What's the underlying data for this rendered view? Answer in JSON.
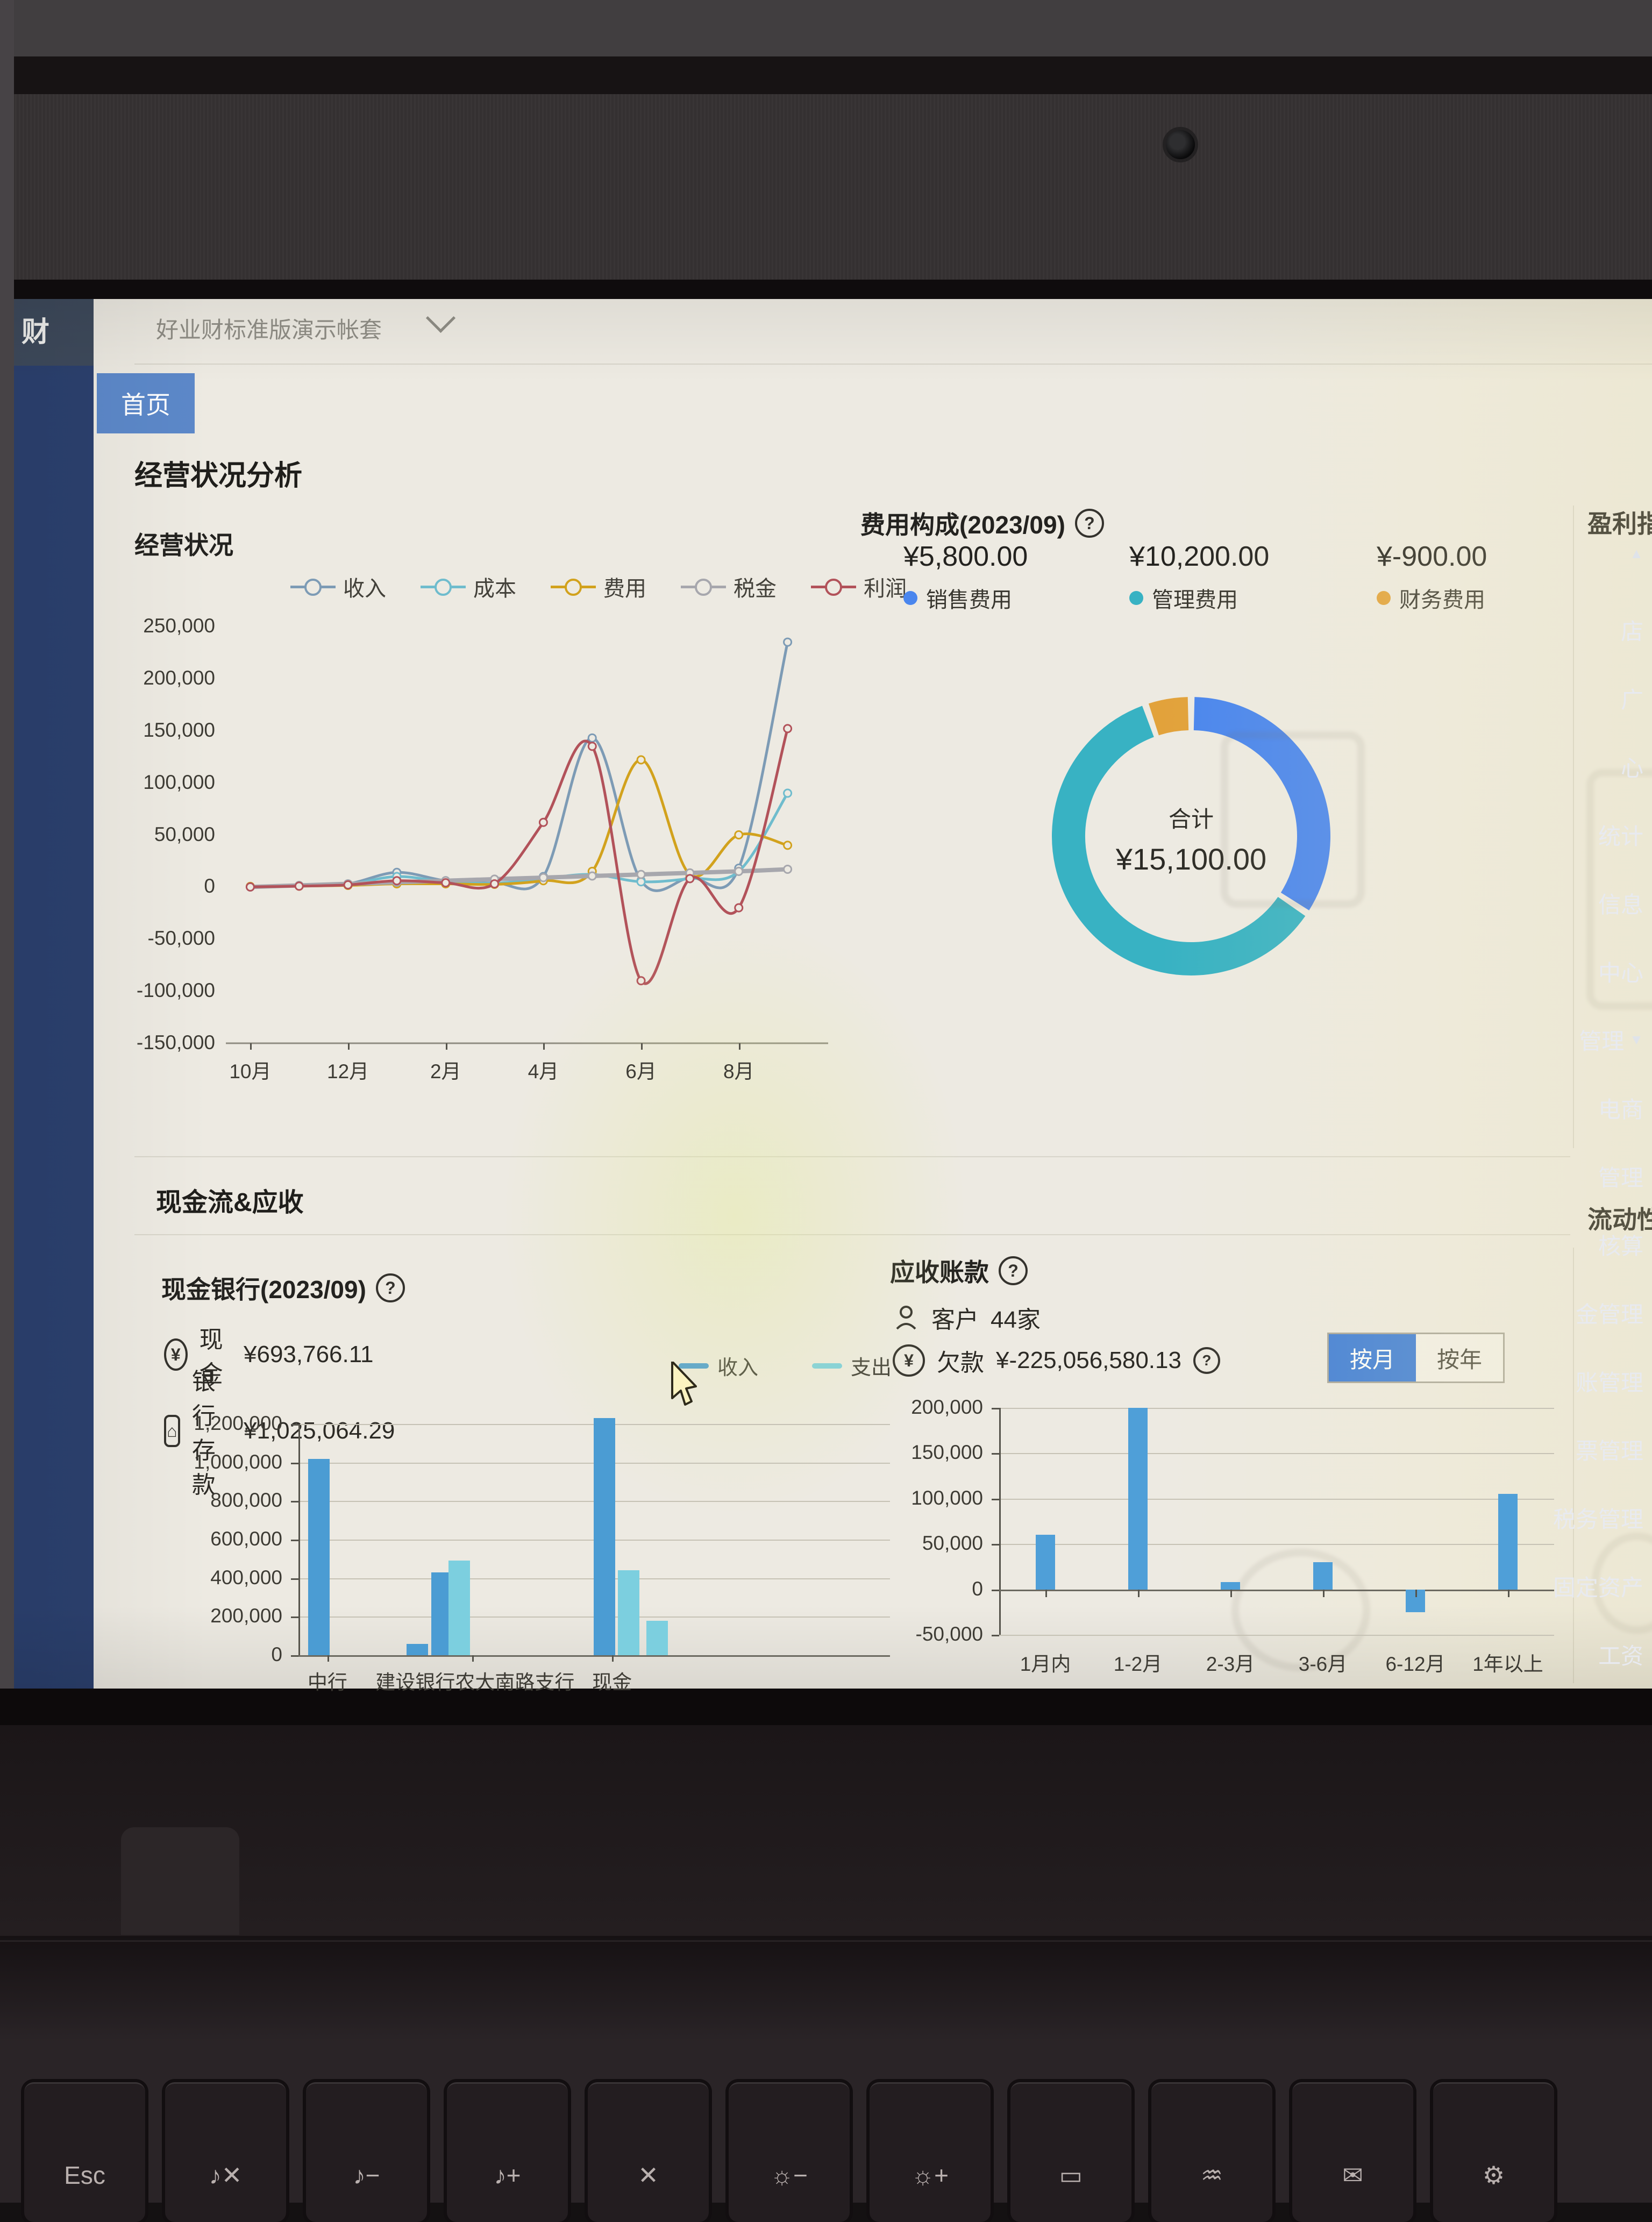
{
  "header": {
    "brand_partial": "财",
    "account_title": "好业财标准版演示帐套",
    "home_tab": "首页",
    "page_title": "经营状况分析"
  },
  "sidebar": {
    "items": [
      {
        "label": "",
        "arrow": "up"
      },
      {
        "label": "店"
      },
      {
        "label": "广"
      },
      {
        "label": "心"
      },
      {
        "label": "统计"
      },
      {
        "label": "信息"
      },
      {
        "label": "中心"
      },
      {
        "label": "管理",
        "arrow": "down"
      },
      {
        "label": "电商"
      },
      {
        "label": "管理"
      },
      {
        "label": "核算"
      },
      {
        "label": "金管理"
      },
      {
        "label": "账管理"
      },
      {
        "label": "票管理"
      },
      {
        "label": "税务管理"
      },
      {
        "label": "固定资产"
      },
      {
        "label": "工资"
      }
    ]
  },
  "section1": {
    "right_edge_label": "盈利指",
    "expense_panel": {
      "title": "费用构成(2023/09)",
      "stats": [
        {
          "value": "¥5,800.00",
          "label": "销售费用",
          "color": "#4a86ee"
        },
        {
          "value": "¥10,200.00",
          "label": "管理费用",
          "color": "#38b2c3"
        },
        {
          "value": "¥-900.00",
          "label": "财务费用",
          "color": "#e2a23b"
        }
      ],
      "center_label": "合计",
      "center_value": "¥15,100.00"
    }
  },
  "section2": {
    "heading": "现金流&应收",
    "right_edge_label": "流动性",
    "cash_panel": {
      "title": "现金银行(2023/09)",
      "rows": [
        {
          "icon": "yen-circle",
          "label": "现金",
          "value": "¥693,766.11"
        },
        {
          "icon": "bank-house",
          "label": "银行存款",
          "value": "¥1,025,064.29"
        }
      ],
      "legend": [
        {
          "name": "收入",
          "color": "#4b9cd3"
        },
        {
          "name": "支出",
          "color": "#7ccfdf"
        }
      ]
    },
    "receivable_panel": {
      "title": "应收账款",
      "customers_label": "客户",
      "customers_value": "44家",
      "debt_label": "欠款",
      "debt_value": "¥-225,056,580.13",
      "toggle": [
        {
          "label": "按月",
          "active": true
        },
        {
          "label": "按年",
          "active": false
        }
      ]
    }
  },
  "chart_data": [
    {
      "id": "business-trend",
      "type": "line",
      "title": "经营状况",
      "categories": [
        "10月",
        "11月",
        "12月",
        "1月",
        "2月",
        "3月",
        "4月",
        "5月",
        "6月",
        "7月",
        "8月",
        "9月"
      ],
      "x_tick_labels": [
        "10月",
        "12月",
        "2月",
        "4月",
        "6月",
        "8月"
      ],
      "ylim": [
        -150000,
        250000
      ],
      "y_ticks": [
        "250,000",
        "200,000",
        "150,000",
        "100,000",
        "50,000",
        "0",
        "-50,000",
        "-100,000",
        "-150,000"
      ],
      "grid": false,
      "legend_position": "top",
      "series": [
        {
          "name": "收入",
          "color": "#7d9bb5",
          "width": 5,
          "values": [
            0,
            1000,
            3000,
            14000,
            6000,
            4000,
            10000,
            143000,
            6000,
            9000,
            18000,
            235000
          ]
        },
        {
          "name": "成本",
          "color": "#6fbccd",
          "width": 5,
          "values": [
            0,
            1000,
            2500,
            10000,
            5000,
            3500,
            8000,
            12000,
            5000,
            8000,
            15000,
            90000
          ]
        },
        {
          "name": "费用",
          "color": "#d2a21d",
          "width": 5,
          "values": [
            500,
            800,
            1500,
            3000,
            3000,
            2500,
            6000,
            15000,
            122000,
            12000,
            50000,
            40000
          ]
        },
        {
          "name": "税金",
          "color": "#a7a7ad",
          "width": 8,
          "values": [
            0,
            1500,
            3000,
            4500,
            6000,
            7500,
            9000,
            10500,
            12000,
            13500,
            15000,
            17000
          ]
        },
        {
          "name": "利润",
          "color": "#b2525a",
          "width": 5,
          "values": [
            0,
            800,
            2000,
            6000,
            4000,
            3000,
            62000,
            135000,
            -90000,
            8000,
            -20000,
            152000
          ]
        }
      ]
    },
    {
      "id": "expense-composition",
      "type": "pie",
      "title": "费用构成(2023/09)",
      "center_label": "合计",
      "center_value": "¥15,100.00",
      "slices": [
        {
          "name": "销售费用",
          "value": 5800,
          "color": "#4a86ee"
        },
        {
          "name": "管理费用",
          "value": 10200,
          "color": "#38b2c3"
        },
        {
          "name": "财务费用",
          "value": -900,
          "color": "#e2a23b"
        }
      ]
    },
    {
      "id": "cash-bank",
      "type": "bar",
      "title": "现金银行(2023/09)",
      "ylim": [
        0,
        1300000
      ],
      "y_ticks": [
        "1,200,000",
        "1,000,000",
        "800,000",
        "600,000",
        "400,000",
        "200,000",
        "0"
      ],
      "grid": true,
      "series_colors": {
        "收入": "#4b9cd3",
        "支出": "#7ccfdf"
      },
      "categories": [
        {
          "label": "中行",
          "frac": 0.055
        },
        {
          "label": "建设银行农大南路支行",
          "frac": 0.33
        },
        {
          "label": "现金",
          "frac": 0.595
        }
      ],
      "bars": [
        {
          "frac": 0.018,
          "series": "收入",
          "value": 1020000
        },
        {
          "frac": 0.205,
          "series": "收入",
          "value": 60000
        },
        {
          "frac": 0.252,
          "series": "收入",
          "value": 430000
        },
        {
          "frac": 0.285,
          "series": "支出",
          "value": 490000
        },
        {
          "frac": 0.56,
          "series": "收入",
          "value": 1230000
        },
        {
          "frac": 0.606,
          "series": "支出",
          "value": 440000
        },
        {
          "frac": 0.66,
          "series": "支出",
          "value": 180000
        }
      ]
    },
    {
      "id": "receivable-aging",
      "type": "bar",
      "title": "应收账款",
      "ylim": [
        -50000,
        200000
      ],
      "y_ticks": [
        "200,000",
        "150,000",
        "100,000",
        "50,000",
        "0",
        "-50,000"
      ],
      "grid": true,
      "bar_color": "#4f9fd8",
      "categories": [
        "1月内",
        "1-2月",
        "2-3月",
        "3-6月",
        "6-12月",
        "1年以上"
      ],
      "values": [
        60000,
        200000,
        8000,
        30000,
        -25000,
        105000
      ]
    }
  ],
  "keyboard": {
    "keys": [
      {
        "name": "esc-key",
        "label": "Esc"
      },
      {
        "name": "mute-key",
        "label": "♪✕"
      },
      {
        "name": "volume-down-key",
        "label": "♪−"
      },
      {
        "name": "volume-up-key",
        "label": "♪+"
      },
      {
        "name": "mic-mute-key",
        "label": "✕"
      },
      {
        "name": "brightness-down-key",
        "label": "☼−"
      },
      {
        "name": "brightness-up-key",
        "label": "☼+"
      },
      {
        "name": "display-switch-key",
        "label": "▭"
      },
      {
        "name": "wireless-key",
        "label": "♒"
      },
      {
        "name": "chat-key",
        "label": "✉"
      },
      {
        "name": "settings-key",
        "label": "⚙"
      }
    ]
  }
}
